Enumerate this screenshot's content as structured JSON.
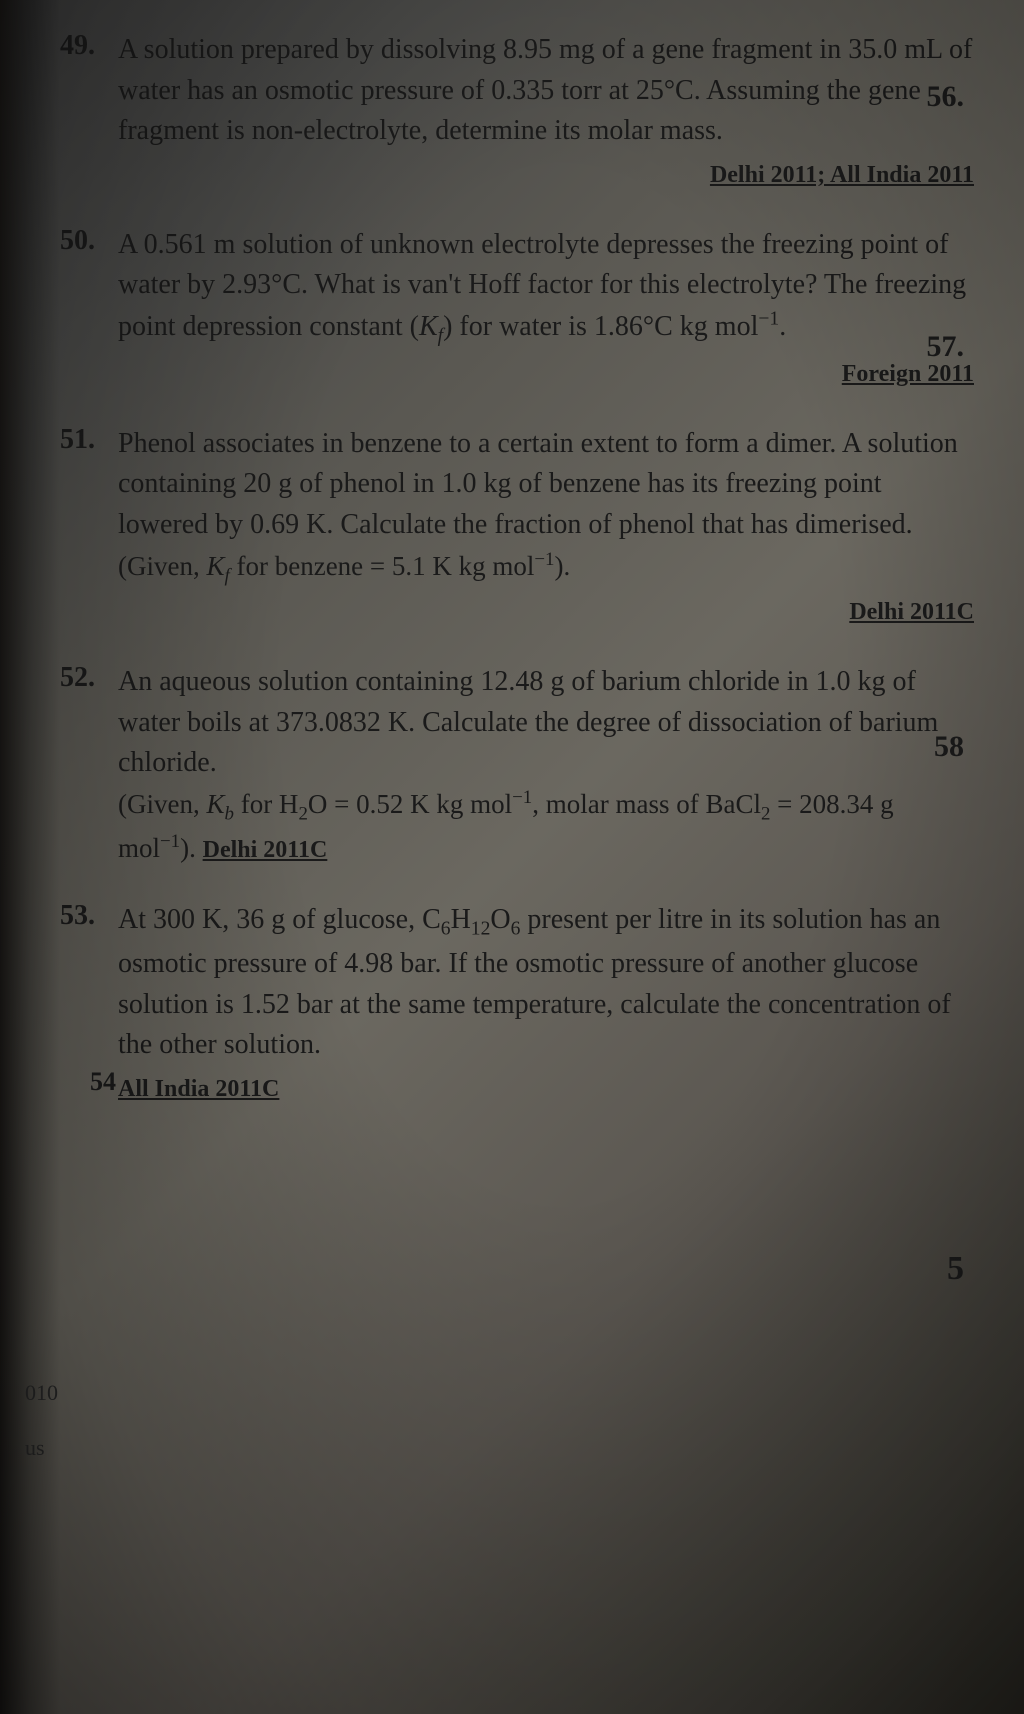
{
  "questions": [
    {
      "num": "49.",
      "text": "A solution prepared by dissolving 8.95 mg of a gene fragment in 35.0 mL of water has an osmotic pressure of 0.335 torr at 25°C. Assuming the gene fragment is non-electrolyte, determine its molar mass.",
      "source": "Delhi 2011; All India 2011"
    },
    {
      "num": "50.",
      "text": "A 0.561 m solution of unknown electrolyte depresses the freezing point of water by 2.93°C. What is van't Hoff factor for this electrolyte? The freezing point depression constant (K_f) for water is 1.86°C kg mol⁻¹.",
      "source": "Foreign 2011"
    },
    {
      "num": "51.",
      "text": "Phenol associates in benzene to a certain extent to form a dimer. A solution containing 20 g of phenol in 1.0 kg of benzene has its freezing point lowered by 0.69 K. Calculate the fraction of phenol that has dimerised.",
      "given": "(Given, K_f for benzene = 5.1 K kg mol⁻¹).",
      "source": "Delhi 2011C"
    },
    {
      "num": "52.",
      "text": "An aqueous solution containing 12.48 g of barium chloride in 1.0 kg of water boils at 373.0832 K. Calculate the degree of dissociation of barium chloride.",
      "given": "(Given, K_b for H₂O = 0.52 K kg mol⁻¹, molar mass of BaCl₂ = 208.34 g mol⁻¹).",
      "source": "Delhi 2011C"
    },
    {
      "num": "53.",
      "text": "At 300 K, 36 g of glucose, C₆H₁₂O₆ present per litre in its solution has an osmotic pressure of 4.98 bar. If the osmotic pressure of another glucose solution is 1.52 bar at the same temperature, calculate the concentration of the other solution.",
      "source": "All India 2011C"
    }
  ],
  "rightNumbers": {
    "n56": "56.",
    "n57": "57.",
    "n58": "58",
    "bracket": "☑",
    "n5": "5"
  },
  "leftMargin": {
    "t010": "010",
    "tus": "us"
  },
  "bottomNum": "54"
}
